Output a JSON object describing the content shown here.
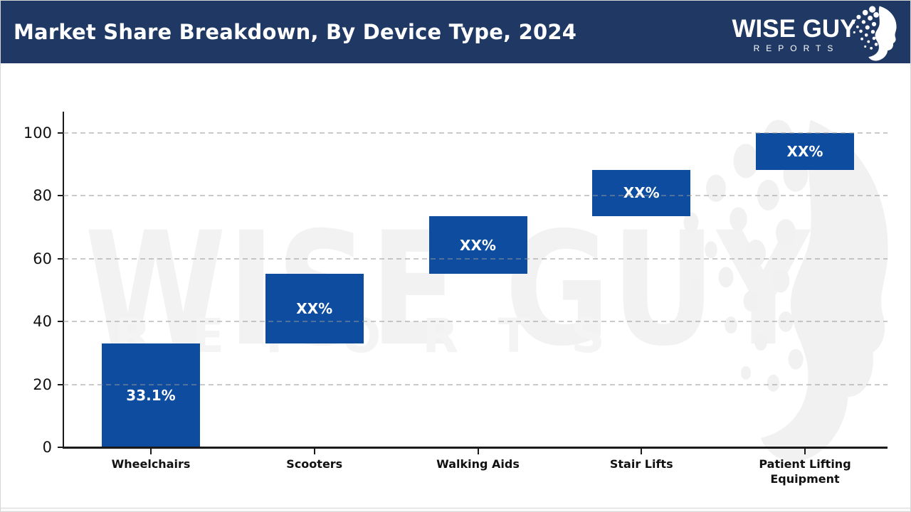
{
  "header": {
    "title": "Market Share Breakdown, By Device Type, 2024",
    "logo": {
      "brand": "WISE GUY",
      "sub": "REPORTS"
    }
  },
  "watermark": {
    "line1": "WISE GUY",
    "line2": "REPORTS"
  },
  "colors": {
    "header_bg": "#1F3864",
    "bar": "#0D4C9F",
    "bar_label": "#FFFFFF",
    "grid": "#D9D9D9",
    "axis": "#1A1A1A"
  },
  "chart_data": {
    "type": "bar",
    "subtype": "waterfall",
    "title": "Market Share Breakdown, By Device Type, 2024",
    "categories": [
      "Wheelchairs",
      "Scooters",
      "Walking Aids",
      "Stair Lifts",
      "Patient Lifting Equipment"
    ],
    "segments": [
      {
        "category": "Wheelchairs",
        "start": 0,
        "end": 33.1,
        "label": "33.1%"
      },
      {
        "category": "Scooters",
        "start": 33.1,
        "end": 55.1,
        "label": "XX%"
      },
      {
        "category": "Walking Aids",
        "start": 55.1,
        "end": 73.6,
        "label": "XX%"
      },
      {
        "category": "Stair Lifts",
        "start": 73.6,
        "end": 88.3,
        "label": "XX%"
      },
      {
        "category": "Patient Lifting Equipment",
        "start": 88.3,
        "end": 100,
        "label": "XX%"
      }
    ],
    "xlabel": "",
    "ylabel": "",
    "ylim": [
      0,
      100
    ],
    "yticks": [
      0,
      20,
      40,
      60,
      80,
      100
    ],
    "grid": "horizontal-dashed",
    "legend": false,
    "bar_color": "#0D4C9F"
  }
}
